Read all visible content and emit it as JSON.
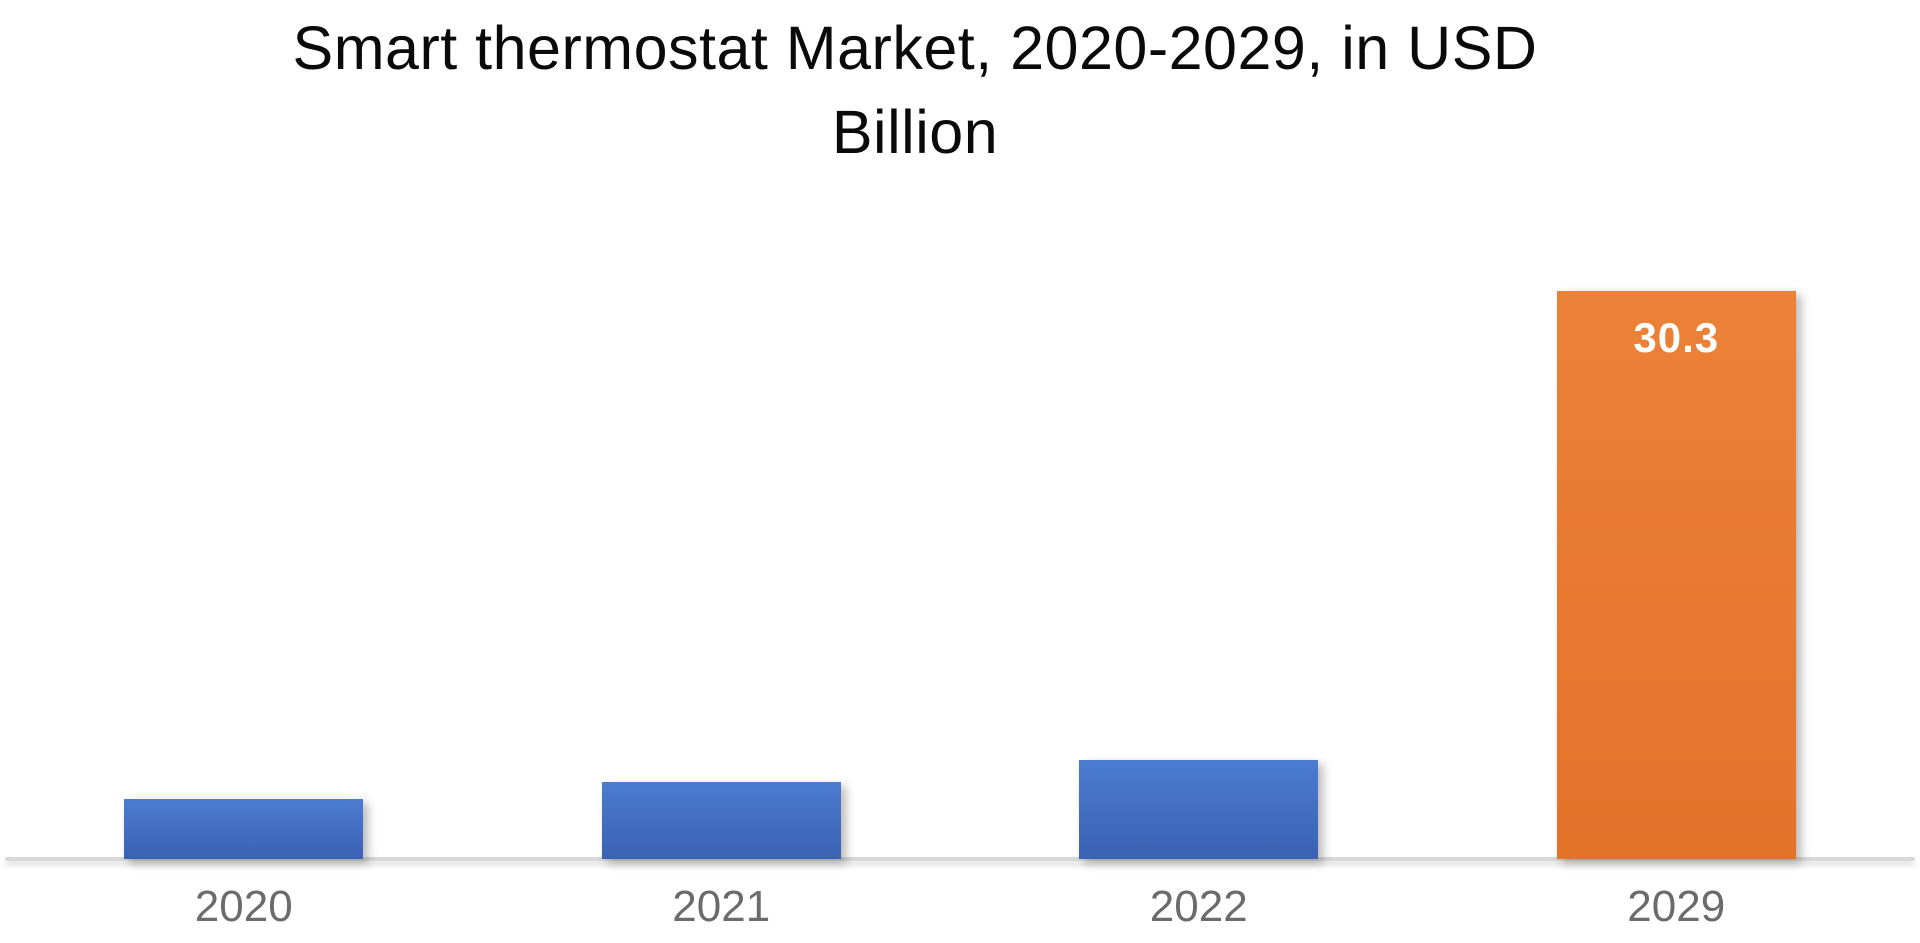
{
  "title": {
    "full": "Smart thermostat Market, 2020-2029, in USD Billion",
    "line1": "Smart thermostat Market, 2020-2029, in USD",
    "line2": "Billion"
  },
  "chart_data": {
    "type": "bar",
    "title": "Smart thermostat Market, 2020-2029, in USD Billion",
    "categories": [
      "2020",
      "2021",
      "2022",
      "2029"
    ],
    "values": [
      3.2,
      4.1,
      5.3,
      30.3
    ],
    "data_labels": [
      "",
      "",
      "",
      "30.3"
    ],
    "xlabel": "",
    "ylabel": "",
    "ylim": [
      0,
      32
    ],
    "grid": false,
    "legend": false,
    "y_axis_visible": false,
    "bar_colors": [
      "#4472C4",
      "#4472C4",
      "#4472C4",
      "#ED7D31"
    ],
    "bar_gradient_top": [
      "#4C7CD0",
      "#4C7CD0",
      "#4C7CD0",
      "#EC8138"
    ],
    "bar_gradient_bottom": [
      "#3A62B3",
      "#3A62B3",
      "#3A62B3",
      "#E4732A"
    ],
    "highlight_category": "2029",
    "axis_line_color": "#D8D8D8",
    "tick_label_color": "#6B6B6B",
    "data_label_color": "#FFFFFF",
    "title_color": "#0A0A0A",
    "background": "#FFFFFF"
  }
}
